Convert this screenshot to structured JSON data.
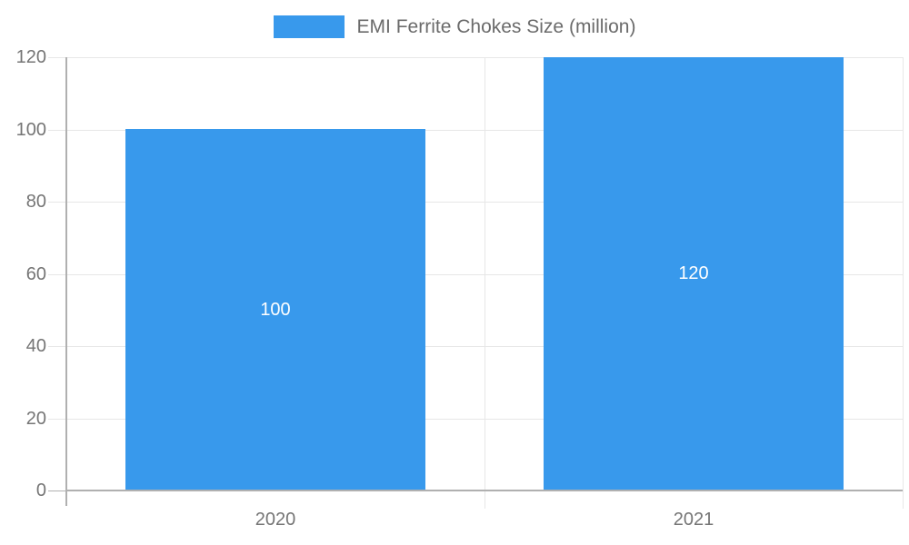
{
  "chart": {
    "legend": {
      "label": "EMI Ferrite Chokes Size (million)"
    },
    "colors": {
      "bar": "#3899ec",
      "axis_line": "#b0b0b0",
      "grid_line": "#e7e7e7",
      "axis_label": "#757575",
      "legend_text": "#6b6b6b",
      "data_label": "#ffffff",
      "background": "#ffffff"
    }
  },
  "chart_data": {
    "type": "bar",
    "title": "EMI Ferrite Chokes Size (million)",
    "categories": [
      "2020",
      "2021"
    ],
    "series": [
      {
        "name": "EMI Ferrite Chokes Size (million)",
        "values": [
          100,
          120
        ]
      }
    ],
    "data_labels": [
      "100",
      "120"
    ],
    "xlabel": "",
    "ylabel": "",
    "ylim": [
      0,
      120
    ],
    "yticks": [
      0,
      20,
      40,
      60,
      80,
      100,
      120
    ],
    "grid": true,
    "legend_position": "top-center"
  }
}
